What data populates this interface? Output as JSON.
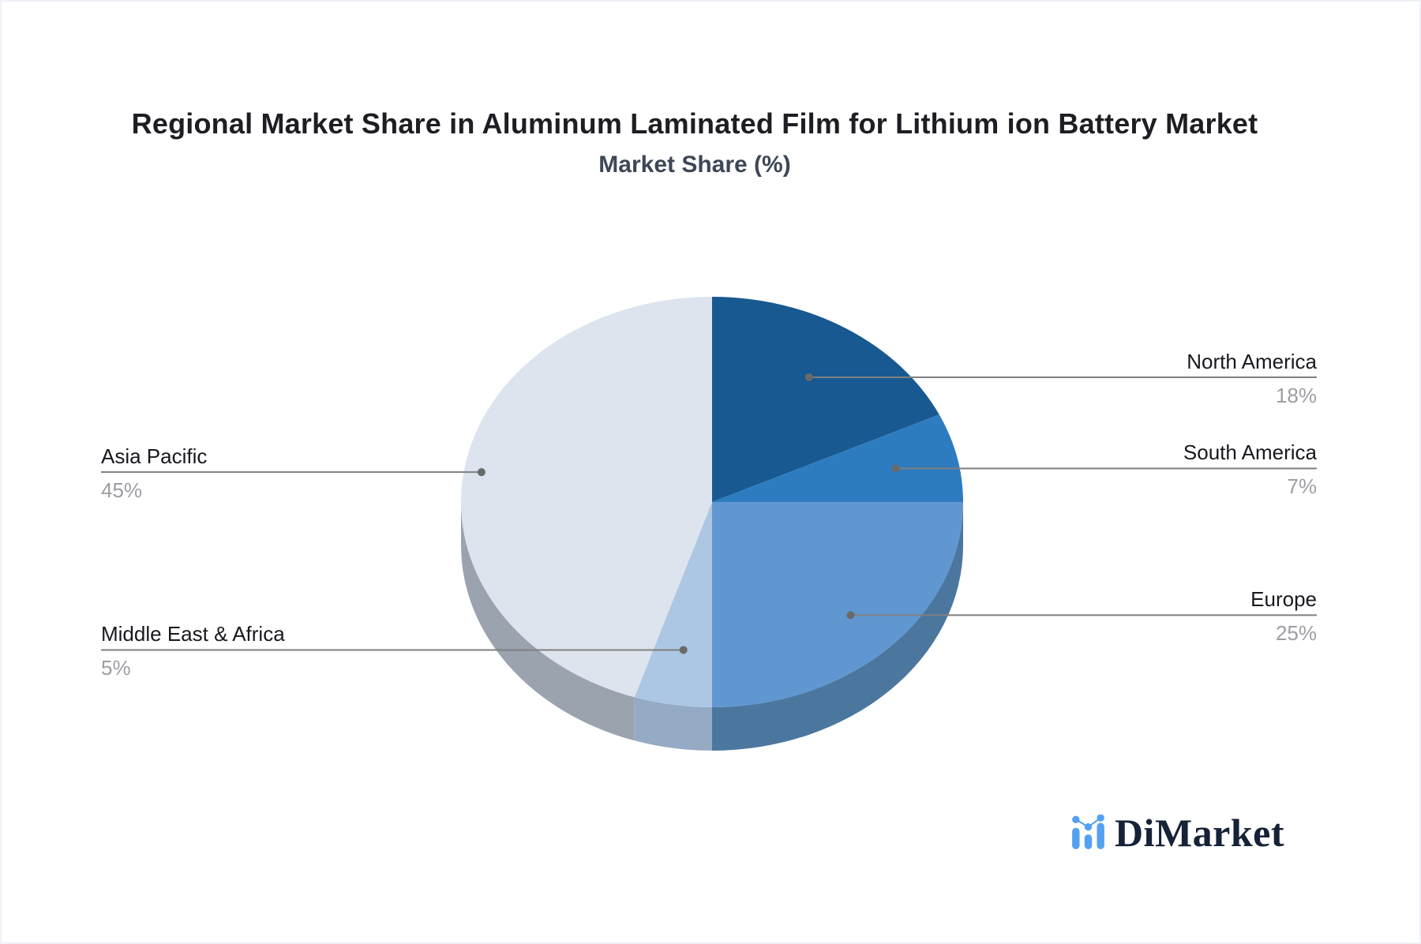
{
  "title": "Regional Market Share in Aluminum Laminated Film for Lithium ion Battery Market",
  "subtitle": "Market Share (%)",
  "logo": {
    "text": "DiMarket",
    "icon": "bar-chart-icon"
  },
  "chart_data": {
    "type": "pie",
    "title": "Regional Market Share in Aluminum Laminated Film for Lithium ion Battery Market",
    "subtitle": "Market Share (%)",
    "unit": "%",
    "style": "3d-pie",
    "start_angle": "12-oclock-clockwise",
    "legend": "none (leader-line labels)",
    "categories": [
      "North America",
      "South America",
      "Europe",
      "Middle East & Africa",
      "Asia Pacific"
    ],
    "values": [
      18,
      7,
      25,
      5,
      45
    ],
    "series": [
      {
        "name": "North America",
        "value": 18,
        "label": "18%",
        "color": "#175990",
        "side_color": "#255f91",
        "label_side": "right"
      },
      {
        "name": "South America",
        "value": 7,
        "label": "7%",
        "color": "#2e7cc0",
        "side_color": "#27699f",
        "label_side": "right"
      },
      {
        "name": "Europe",
        "value": 25,
        "label": "25%",
        "color": "#6097d1",
        "side_color": "#4b779f",
        "label_side": "right"
      },
      {
        "name": "Middle East & Africa",
        "value": 5,
        "label": "5%",
        "color": "#abc7e3",
        "side_color": "#95abc5",
        "label_side": "left"
      },
      {
        "name": "Asia Pacific",
        "value": 45,
        "label": "45%",
        "color": "#dde4ee",
        "side_color": "#9aa3ae",
        "label_side": "left"
      }
    ],
    "leader_line_color": "#7f7f7f",
    "leader_dot_color": "#696969",
    "percent_label_color": "#9c9ea3",
    "name_label_color": "#17191e"
  }
}
